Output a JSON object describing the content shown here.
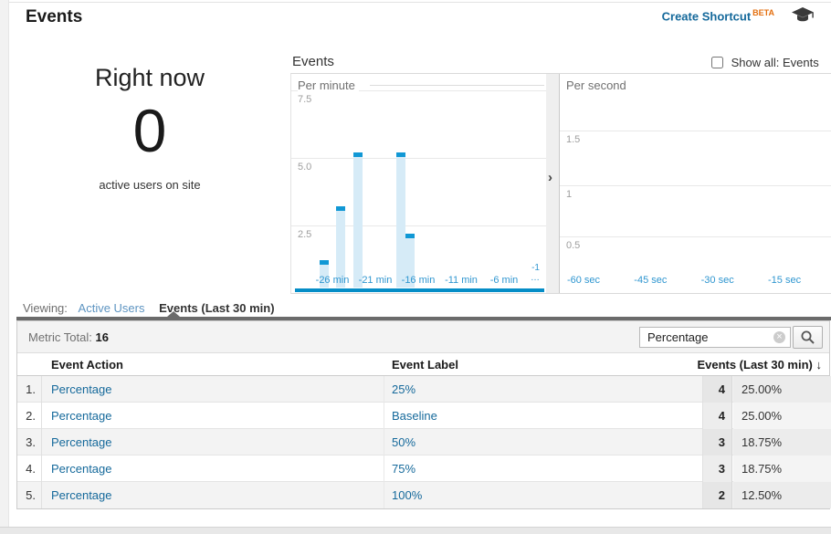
{
  "header": {
    "title": "Events",
    "create_shortcut_label": "Create Shortcut",
    "beta_label": "BETA"
  },
  "right_now": {
    "heading": "Right now",
    "active_users": "0",
    "caption": "active users on site"
  },
  "chart_section": {
    "title": "Events",
    "show_all_label": "Show all: Events",
    "expander_glyph": "›"
  },
  "chart_data": [
    {
      "type": "bar",
      "title": "Per minute",
      "x_minutes": [
        -27,
        -25,
        -23,
        -18,
        -17
      ],
      "values": [
        1,
        3,
        5,
        5,
        2
      ],
      "x_tick_labels": [
        "-26 min",
        "-21 min",
        "-16 min",
        "-11 min",
        "-6 min"
      ],
      "truncated_tick": {
        "line1": "-1",
        "line2": "…"
      },
      "y_tick_labels": [
        "7.5",
        "5.0",
        "2.5"
      ],
      "ylim": [
        0,
        7.5
      ],
      "bar_cap_color": "#1198d5",
      "bar_fill_color": "#d6ebf7",
      "baseline_color": "#058dc7",
      "legend": "none",
      "grid": true
    },
    {
      "type": "bar",
      "title": "Per second",
      "values": [],
      "x_tick_labels": [
        "-60 sec",
        "-45 sec",
        "-30 sec",
        "-15 sec"
      ],
      "y_tick_labels": [
        "1.5",
        "1",
        "0.5"
      ],
      "ylim": [
        0,
        2
      ],
      "legend": "none",
      "grid": true
    }
  ],
  "viewing": {
    "label": "Viewing:",
    "tabs": [
      {
        "label": "Active Users",
        "active": false
      },
      {
        "label": "Events (Last 30 min)",
        "active": true
      }
    ]
  },
  "table": {
    "metric_total_label": "Metric Total:",
    "metric_total_value": "16",
    "search_value": "Percentage",
    "columns": [
      "Event Action",
      "Event Label",
      "Events (Last 30 min)"
    ],
    "sort_arrow": "↓",
    "rows": [
      {
        "index": "1.",
        "action": "Percentage",
        "label": "25%",
        "events": "4",
        "percentage": "25.00%"
      },
      {
        "index": "2.",
        "action": "Percentage",
        "label": "Baseline",
        "events": "4",
        "percentage": "25.00%"
      },
      {
        "index": "3.",
        "action": "Percentage",
        "label": "50%",
        "events": "3",
        "percentage": "18.75%"
      },
      {
        "index": "4.",
        "action": "Percentage",
        "label": "75%",
        "events": "3",
        "percentage": "18.75%"
      },
      {
        "index": "5.",
        "action": "Percentage",
        "label": "100%",
        "events": "2",
        "percentage": "12.50%"
      }
    ]
  }
}
